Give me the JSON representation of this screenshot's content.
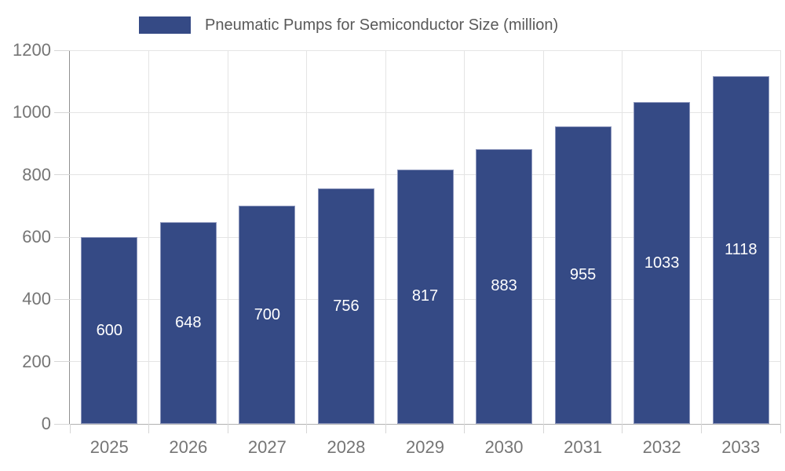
{
  "chart_data": {
    "type": "bar",
    "title": "Pneumatic Pumps for Semiconductor Size (million)",
    "series_name": "Pneumatic Pumps for Semiconductor Size (million)",
    "categories": [
      "2025",
      "2026",
      "2027",
      "2028",
      "2029",
      "2030",
      "2031",
      "2032",
      "2033"
    ],
    "values": [
      600,
      648,
      700,
      756,
      817,
      883,
      955,
      1033,
      1118
    ],
    "xlabel": "",
    "ylabel": "",
    "ylim": [
      0,
      1200
    ],
    "yticks": [
      0,
      200,
      400,
      600,
      800,
      1000,
      1200
    ],
    "grid": true,
    "legend_position": "top-left",
    "bar_color": "#354A85",
    "value_label_color": "#FFFFFF"
  },
  "colors": {
    "background": "#FFFFFF",
    "bar_fill": "#354A85",
    "bar_edge": "#8C96BC",
    "axis_y_line": "#919191",
    "axis_x_line": "#B2B2B2",
    "gridline": "#E4E4E4",
    "tick_mark": "#D6D6D6",
    "tick_label_text": "#757575",
    "legend_text": "#595959"
  }
}
